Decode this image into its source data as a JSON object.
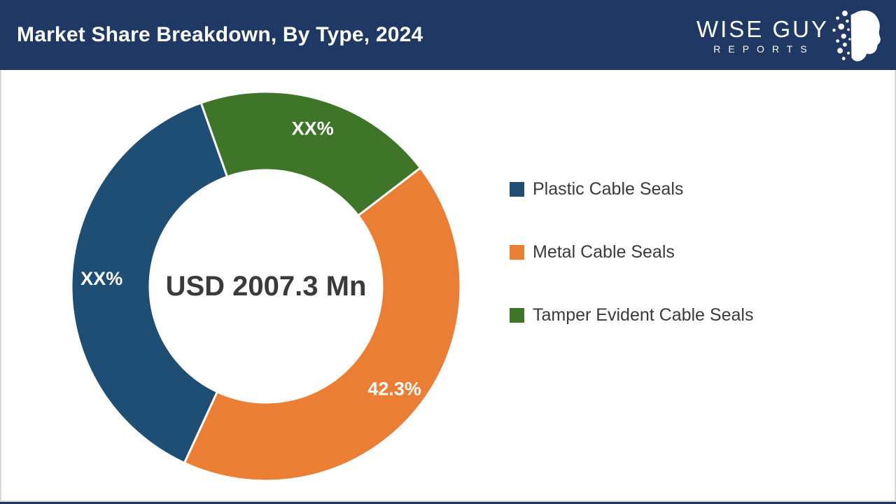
{
  "header": {
    "title": "Market Share Breakdown, By Type, 2024",
    "bg_color": "#203864",
    "logo": {
      "line1": "WISE GUY",
      "line2": "REPORTS"
    }
  },
  "watermark": {
    "line1": "WISE GUY",
    "line2": "R E P O R T S"
  },
  "chart_data": {
    "type": "pie",
    "subtype": "donut",
    "title": "Market Share Breakdown, By Type, 2024",
    "center_label": "USD 2007.3 Mn",
    "start_angle_deg": 109.5,
    "direction": "counterclockwise",
    "outer_radius_px": 278,
    "inner_radius_px": 166,
    "label_radius_px": 235,
    "legend_position": "right",
    "slices": [
      {
        "name": "Plastic Cable Seals",
        "value_pct": 37.7,
        "display_label": "XX%",
        "color": "#1F4E74"
      },
      {
        "name": "Metal Cable Seals",
        "value_pct": 42.3,
        "display_label": "42.3%",
        "color": "#EA7E35"
      },
      {
        "name": "Tamper Evident Cable Seals",
        "value_pct": 20.0,
        "display_label": "XX%",
        "color": "#3F7529"
      }
    ]
  },
  "colors": {
    "header_bg": "#203864",
    "footer_bar": "#203864",
    "content_border": "#d9d9d9",
    "watermark": "#f2f2f2",
    "center_text": "#3a3a3a",
    "legend_text": "#3a3a3a"
  }
}
